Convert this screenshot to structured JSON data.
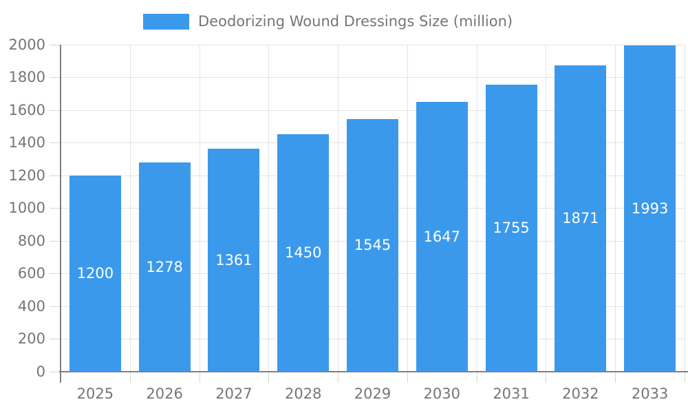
{
  "legend": {
    "label": "Deodorizing Wound Dressings Size (million)"
  },
  "colors": {
    "bar": "#3b99ec",
    "grid": "#e3e3e3",
    "axis": "#7f7f7f",
    "tick": "#d6d6d6",
    "text": "#757575",
    "value_label": "#ffffff",
    "background": "#ffffff"
  },
  "chart_data": {
    "type": "bar",
    "title": "Deodorizing Wound Dressings Size (million)",
    "series_name": "Deodorizing Wound Dressings Size (million)",
    "categories": [
      "2025",
      "2026",
      "2027",
      "2028",
      "2029",
      "2030",
      "2031",
      "2032",
      "2033"
    ],
    "values": [
      1200,
      1278,
      1361,
      1450,
      1545,
      1647,
      1755,
      1871,
      1993
    ],
    "value_labels_inside_bars": true,
    "xlabel": "",
    "ylabel": "",
    "ylim": [
      0,
      2000
    ],
    "yticks": [
      0,
      200,
      400,
      600,
      800,
      1000,
      1200,
      1400,
      1600,
      1800,
      2000
    ],
    "grid": true,
    "legend_position": "top"
  }
}
